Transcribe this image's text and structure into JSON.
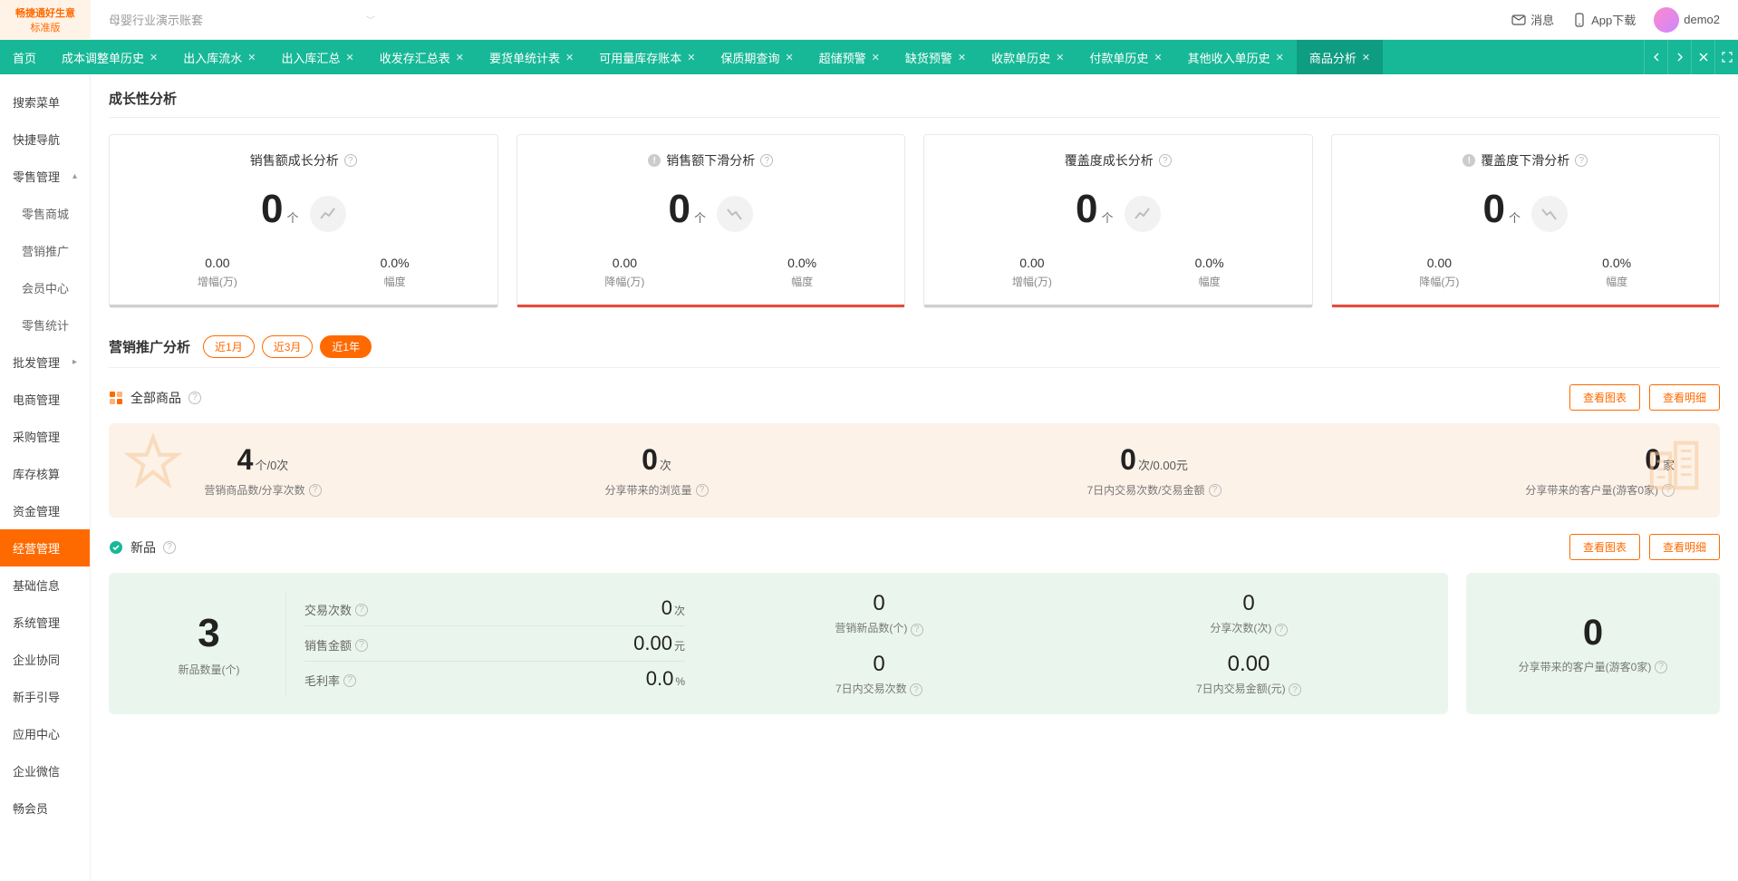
{
  "header": {
    "logo": "畅捷通好生意",
    "edition": "标准版",
    "account": "母婴行业演示账套",
    "message": "消息",
    "download": "App下载",
    "user": "demo2"
  },
  "tabs": {
    "home": "首页",
    "items": [
      "成本调整单历史",
      "出入库流水",
      "出入库汇总",
      "收发存汇总表",
      "要货单统计表",
      "可用量库存账本",
      "保质期查询",
      "超储预警",
      "缺货预警",
      "收款单历史",
      "付款单历史",
      "其他收入单历史",
      "商品分析"
    ],
    "activeIndex": 12
  },
  "sidebar": {
    "search": "搜索菜单",
    "quick": "快捷导航",
    "items": [
      {
        "label": "零售管理",
        "expanded": true
      },
      {
        "label": "零售商城",
        "sub": true
      },
      {
        "label": "营销推广",
        "sub": true
      },
      {
        "label": "会员中心",
        "sub": true
      },
      {
        "label": "零售统计",
        "sub": true
      },
      {
        "label": "批发管理",
        "arrow": "▸"
      },
      {
        "label": "电商管理"
      },
      {
        "label": "采购管理"
      },
      {
        "label": "库存核算"
      },
      {
        "label": "资金管理"
      },
      {
        "label": "经营管理",
        "active": true
      },
      {
        "label": "基础信息"
      },
      {
        "label": "系统管理"
      },
      {
        "label": "企业协同"
      },
      {
        "label": "新手引导"
      },
      {
        "label": "应用中心"
      },
      {
        "label": "企业微信"
      },
      {
        "label": "畅会员"
      }
    ]
  },
  "growth": {
    "title": "成长性分析",
    "cards": [
      {
        "title": "销售额成长分析",
        "warn": false,
        "value": "0",
        "unit": "个",
        "trend": "up",
        "m1v": "0.00",
        "m1l": "增幅(万)",
        "m2v": "0.0%",
        "m2l": "幅度",
        "accent": "gray"
      },
      {
        "title": "销售额下滑分析",
        "warn": true,
        "value": "0",
        "unit": "个",
        "trend": "down",
        "m1v": "0.00",
        "m1l": "降幅(万)",
        "m2v": "0.0%",
        "m2l": "幅度",
        "accent": "red"
      },
      {
        "title": "覆盖度成长分析",
        "warn": false,
        "value": "0",
        "unit": "个",
        "trend": "up",
        "m1v": "0.00",
        "m1l": "增幅(万)",
        "m2v": "0.0%",
        "m2l": "幅度",
        "accent": "gray"
      },
      {
        "title": "覆盖度下滑分析",
        "warn": true,
        "value": "0",
        "unit": "个",
        "trend": "down",
        "m1v": "0.00",
        "m1l": "降幅(万)",
        "m2v": "0.0%",
        "m2l": "幅度",
        "accent": "red"
      }
    ]
  },
  "marketing": {
    "title": "营销推广分析",
    "periods": [
      "近1月",
      "近3月",
      "近1年"
    ],
    "activePeriod": 2,
    "all": {
      "label": "全部商品",
      "viewChart": "查看图表",
      "viewDetail": "查看明细",
      "c1n": "4",
      "c1u": "个/0次",
      "c1l": "营销商品数/分享次数",
      "c2n": "0",
      "c2u": "次",
      "c2l": "分享带来的浏览量",
      "c3n": "0",
      "c3u": "次/0.00元",
      "c3l": "7日内交易次数/交易金额",
      "c4n": "0",
      "c4u": "家",
      "c4l": "分享带来的客户量(游客0家)"
    },
    "new": {
      "label": "新品",
      "viewChart": "查看图表",
      "viewDetail": "查看明细",
      "leftN": "3",
      "leftL": "新品数量(个)",
      "rows": [
        {
          "k": "交易次数",
          "v": "0",
          "u": "次"
        },
        {
          "k": "销售金额",
          "v": "0.00",
          "u": "元"
        },
        {
          "k": "毛利率",
          "v": "0.0",
          "u": "%"
        }
      ],
      "cols": [
        {
          "n1": "0",
          "l1": "营销新品数(个)",
          "n2": "0",
          "l2": "7日内交易次数"
        },
        {
          "n1": "0",
          "l1": "分享次数(次)",
          "n2": "0.00",
          "l2": "7日内交易金额(元)"
        }
      ],
      "sideN": "0",
      "sideL": "分享带来的客户量(游客0家)"
    }
  },
  "colors": {
    "brand": "#17b897",
    "accent": "#ff6a00",
    "danger": "#e74c3c",
    "peach": "#fdf2e8",
    "green": "#eaf6ed"
  }
}
